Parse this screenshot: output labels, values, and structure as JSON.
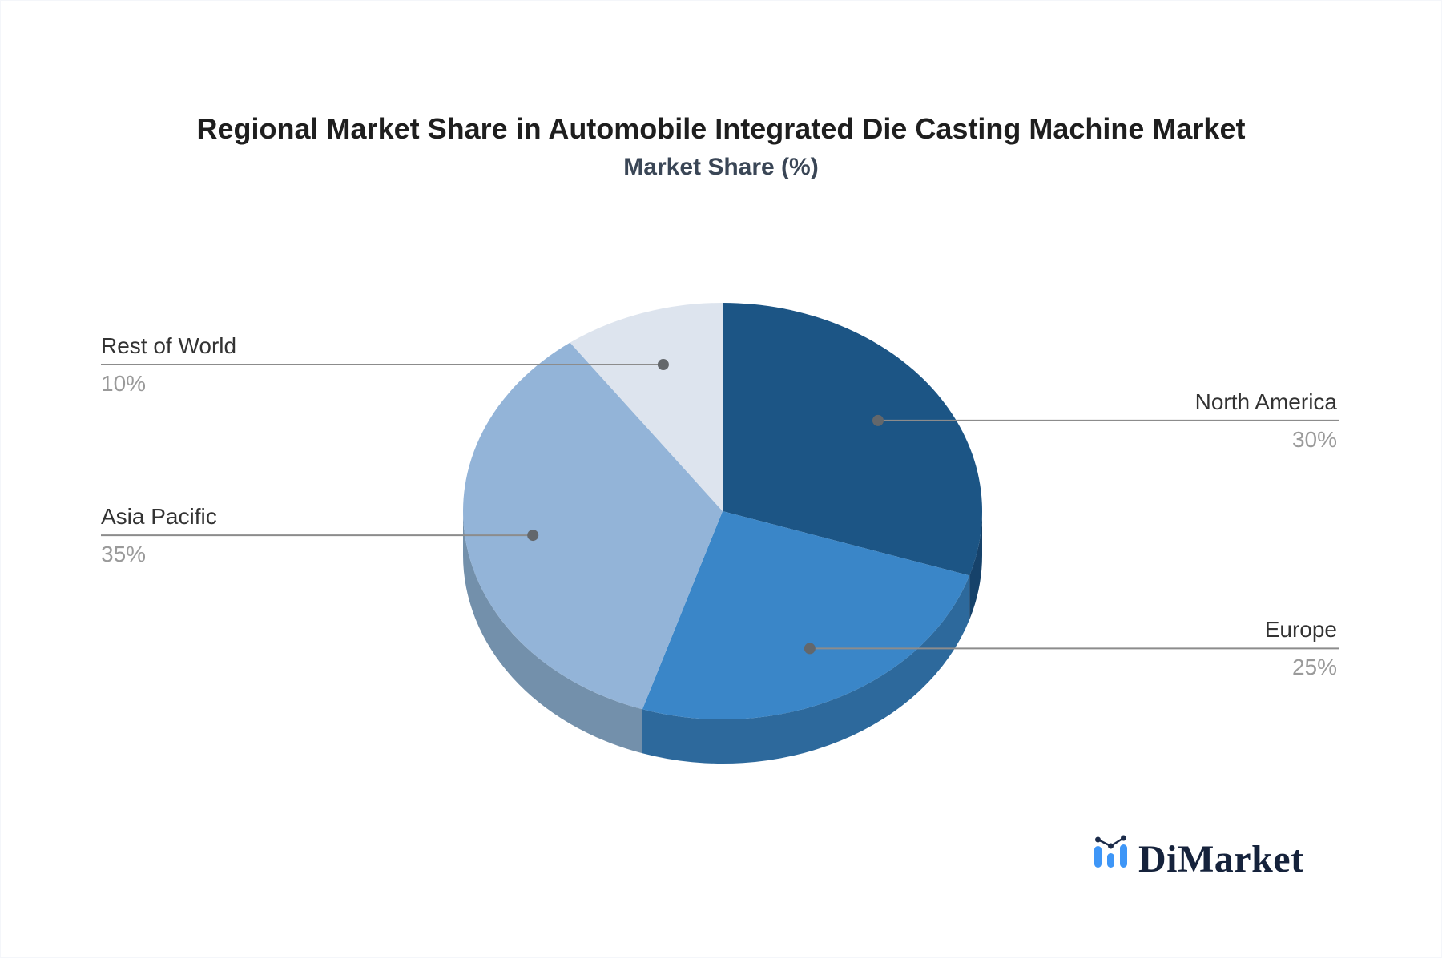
{
  "title": "Regional Market Share in Automobile Integrated Die Casting Machine Market",
  "subtitle": "Market Share (%)",
  "chart_data": {
    "type": "pie",
    "title": "Regional Market Share in Automobile Integrated Die Casting Machine Market",
    "subtitle": "Market Share (%)",
    "labels": [
      "North America",
      "Europe",
      "Asia Pacific",
      "Rest of World"
    ],
    "values": [
      30,
      25,
      35,
      10
    ],
    "unit": "%",
    "start_angle_deg": 0,
    "direction": "clockwise",
    "effect": "3d",
    "legend_position": "none",
    "colors": [
      "#1c5585",
      "#3a86c8",
      "#93b4d8",
      "#dde4ee"
    ],
    "side_colors": [
      "#16426a",
      "#2d699c",
      "#7390ab",
      "#b9c3d3"
    ],
    "callout_line_color": "#8c8c8c",
    "callout_dot_color": "#63676b",
    "label_text_color": "#333333",
    "value_text_color": "#9a9a9a"
  },
  "logo": {
    "text": "DiMarket",
    "icon": "bar-chart-icon",
    "bar_color": "#3e96f7",
    "accent_color": "#1b2b4a",
    "text_color": "#15223b"
  }
}
